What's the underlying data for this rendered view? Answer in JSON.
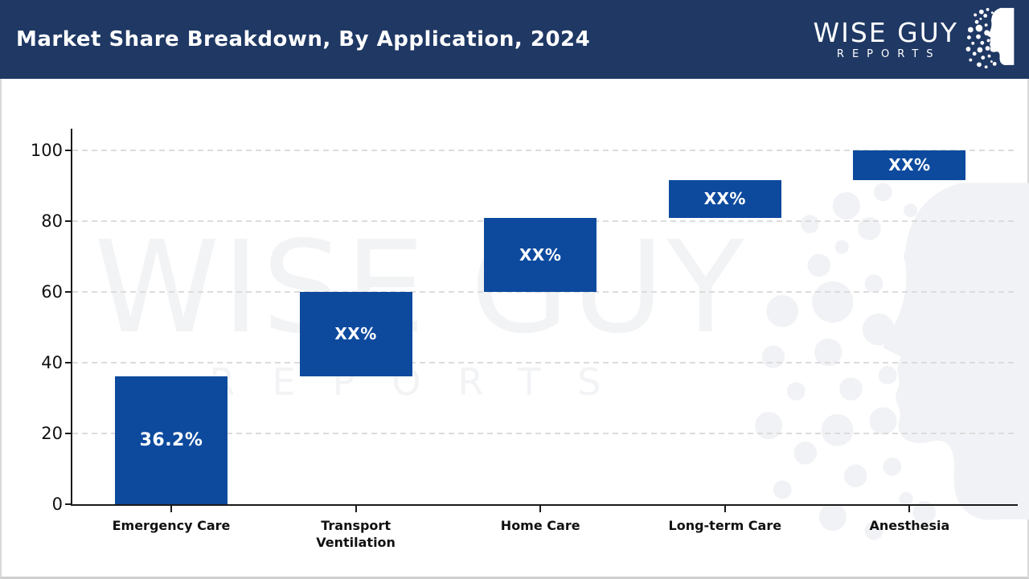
{
  "header": {
    "title": "Market Share Breakdown, By Application, 2024",
    "logo": {
      "line1": "WISE GUY",
      "line2": "REPORTS"
    }
  },
  "watermark": {
    "line1": "WISE GUY",
    "line2": "REPORTS"
  },
  "colors": {
    "header_bg": "#1f3864",
    "bar": "#0d4a9e",
    "bar_label": "#ffffff",
    "grid": "#dcdcdc",
    "axis": "#1a1a1a",
    "watermark": "#f2f3f5"
  },
  "chart_data": {
    "type": "bar",
    "subtype": "waterfall-stacked-percent",
    "title": "Market Share Breakdown, By Application, 2024",
    "xlabel": "",
    "ylabel": "",
    "ylim": [
      0,
      106
    ],
    "yticks": [
      0,
      20,
      40,
      60,
      80,
      100
    ],
    "grid": "horizontal dashed",
    "legend": "none",
    "categories": [
      "Emergency Care",
      "Transport\nVentilation",
      "Home Care",
      "Long-term Care",
      "Anesthesia"
    ],
    "segments": [
      {
        "category": "Emergency Care",
        "start": 0,
        "end": 36.2,
        "label": "36.2%"
      },
      {
        "category": "Transport Ventilation",
        "start": 36.2,
        "end": 60,
        "label": "XX%"
      },
      {
        "category": "Home Care",
        "start": 60,
        "end": 81,
        "label": "XX%"
      },
      {
        "category": "Long-term Care",
        "start": 81,
        "end": 91.7,
        "label": "XX%"
      },
      {
        "category": "Anesthesia",
        "start": 91.7,
        "end": 100,
        "label": "XX%"
      }
    ]
  }
}
